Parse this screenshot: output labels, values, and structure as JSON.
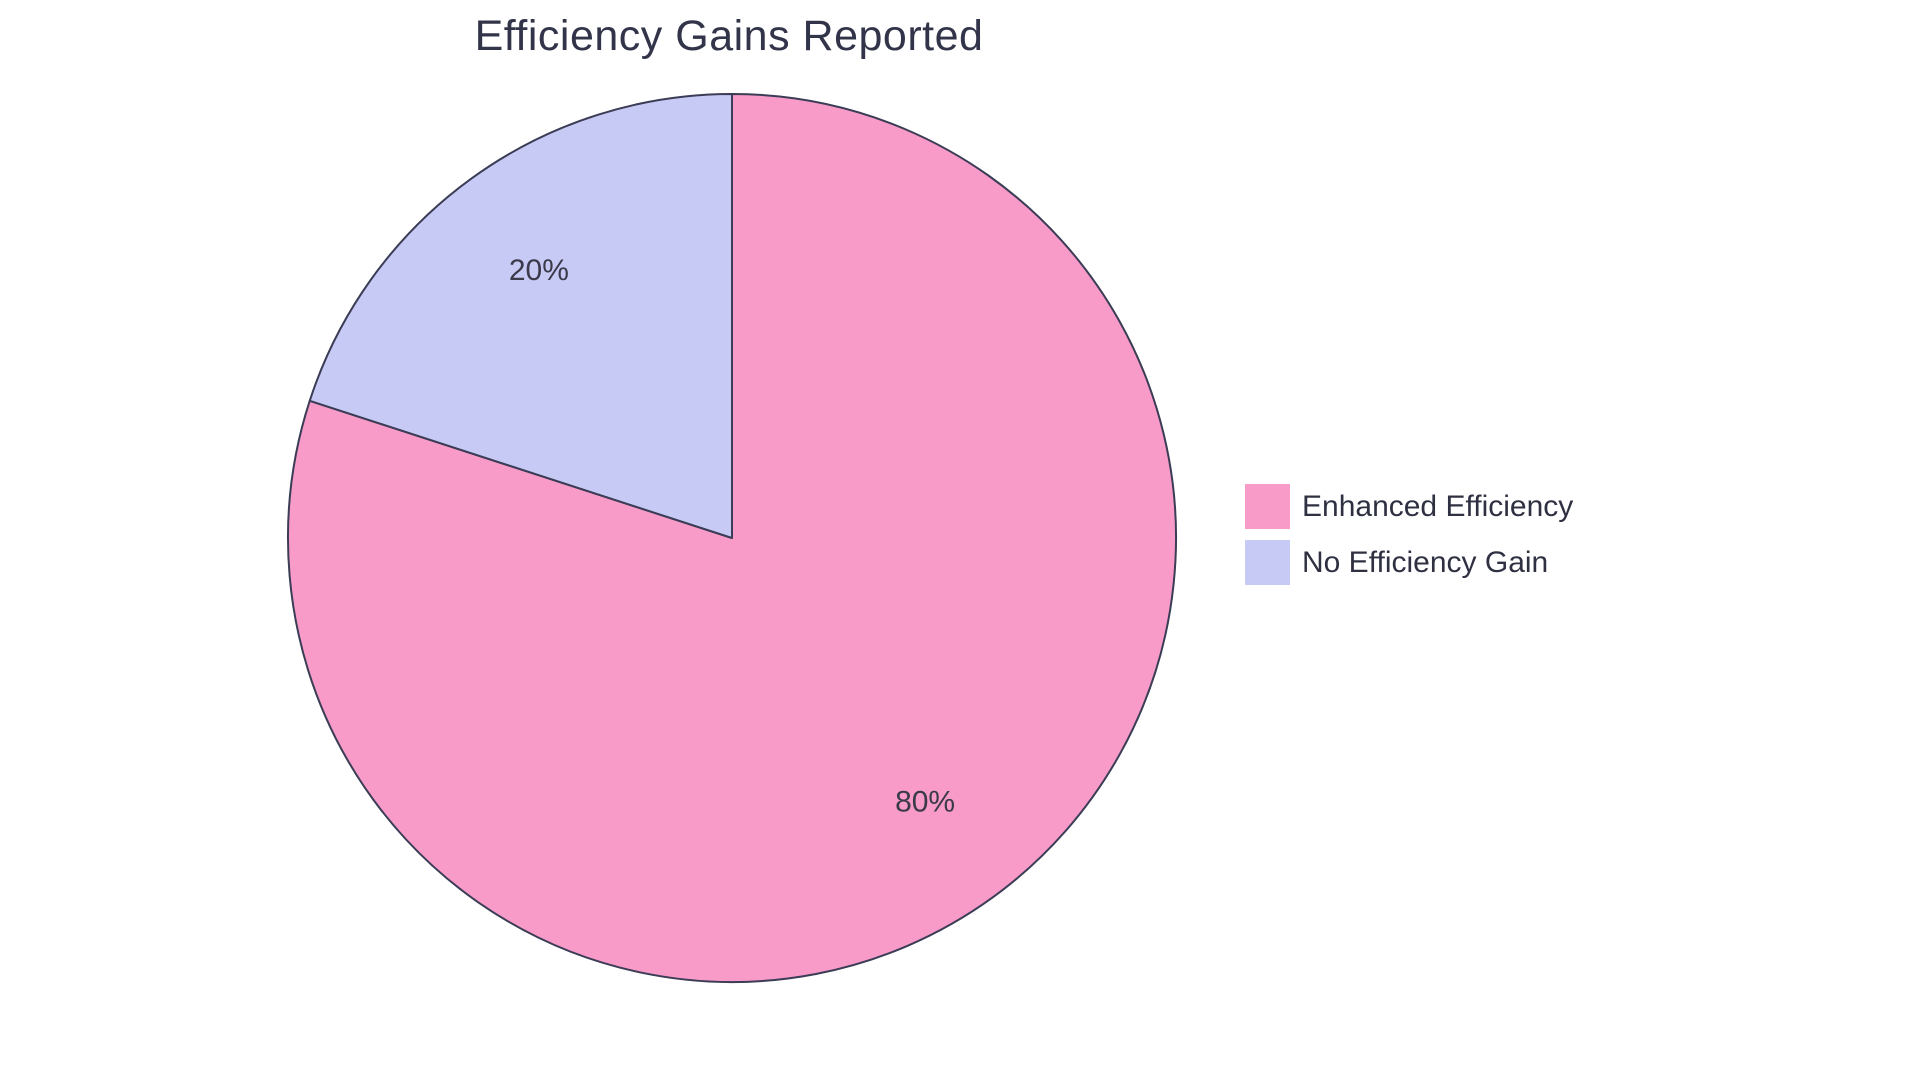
{
  "chart_data": {
    "type": "pie",
    "title": "Efficiency Gains Reported",
    "slices": [
      {
        "label": "Enhanced Efficiency",
        "value": 80,
        "display": "80%",
        "color": "#F89BC9"
      },
      {
        "label": "No Efficiency Gain",
        "value": 20,
        "display": "20%",
        "color": "#C8CAF6"
      }
    ],
    "start_angle_deg": 0,
    "direction": "clockwise",
    "legend_position": "right",
    "outline_color": "#3B3C55",
    "label_color": "#3A3A4A",
    "title_color": "#32344A"
  }
}
